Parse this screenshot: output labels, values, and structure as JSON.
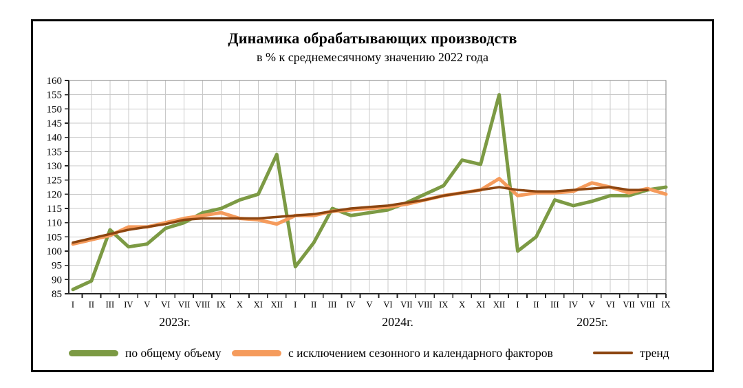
{
  "header": {
    "title": "Динамика обрабатывающих производств",
    "subtitle": "в % к среднемесячному значению 2022 года"
  },
  "chart_data": {
    "type": "line",
    "title": "Динамика обрабатывающих производств",
    "subtitle": "в % к среднемесячному значению 2022 года",
    "ylim": [
      85,
      160
    ],
    "ytick_step": 5,
    "y_ticks": [
      85,
      90,
      95,
      100,
      105,
      110,
      115,
      120,
      125,
      130,
      135,
      140,
      145,
      150,
      155,
      160
    ],
    "grid": true,
    "legend_position": "bottom",
    "month_labels": [
      "I",
      "II",
      "III",
      "IV",
      "V",
      "VI",
      "VII",
      "VIII",
      "IX",
      "X",
      "XI",
      "XII",
      "I",
      "II",
      "III",
      "IV",
      "V",
      "VI",
      "VII",
      "VIII",
      "IX",
      "X",
      "XI",
      "XII",
      "I",
      "II",
      "III",
      "IV",
      "V",
      "VI",
      "VII",
      "VIII",
      "IX"
    ],
    "year_groups": [
      {
        "label": "2023г.",
        "months": 12
      },
      {
        "label": "2024г.",
        "months": 12
      },
      {
        "label": "2025г.",
        "months": 9
      }
    ],
    "series": [
      {
        "name": "по общему объему",
        "color": "#7C9A44",
        "line_width": 5,
        "values": [
          86.5,
          89.5,
          107.5,
          101.5,
          102.5,
          108,
          110,
          113.5,
          115,
          118,
          120,
          134,
          94.5,
          103,
          115,
          112.5,
          113.5,
          114.5,
          117,
          120,
          123,
          132,
          130.5,
          155,
          100,
          105,
          118,
          116,
          117.5,
          119.5,
          119.5,
          121.5,
          122.5
        ]
      },
      {
        "name": "с исключением сезонного и календарного факторов",
        "color": "#F59B5C",
        "line_width": 5,
        "values": [
          102.5,
          104,
          105.5,
          108.5,
          108.5,
          110,
          111.5,
          112.5,
          113.5,
          111.5,
          111,
          109.5,
          112.5,
          112.5,
          114,
          114.5,
          115,
          115.5,
          116.5,
          118,
          119.5,
          120.5,
          121.5,
          125.5,
          119.5,
          120.5,
          120.5,
          121,
          124,
          122.5,
          120.5,
          122,
          120
        ]
      },
      {
        "name": "тренд",
        "color": "#8C4510",
        "line_width": 3.5,
        "values": [
          103,
          104.5,
          106,
          107.5,
          108.5,
          109.5,
          111,
          111.5,
          111.5,
          111.5,
          111.5,
          112,
          112.5,
          113,
          114,
          115,
          115.5,
          116,
          117,
          118,
          119.5,
          120.5,
          121.5,
          122.5,
          121.5,
          121,
          121,
          121.5,
          122,
          122.5,
          121.5,
          121.5,
          null
        ]
      }
    ]
  },
  "colors": {
    "grid": "#c8c8c8",
    "plot_border": "#808080",
    "axis": "#262626",
    "text": "#000000",
    "frame_border": "#000000"
  }
}
